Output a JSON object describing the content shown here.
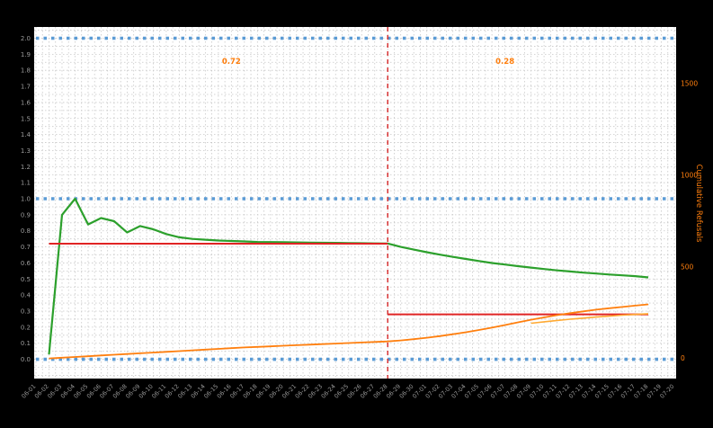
{
  "figure": {
    "background": "#000000"
  },
  "chart_data": {
    "type": "line",
    "title": "",
    "ylabel_right": "Cumulative Refusals",
    "ylim_left": [
      -0.12,
      2.07
    ],
    "ylim_right": [
      -110,
      1810
    ],
    "yticks_left": [
      "0.0",
      "0.1",
      "0.2",
      "0.3",
      "0.4",
      "0.5",
      "0.6",
      "0.7",
      "0.8",
      "0.9",
      "1.0",
      "1.1",
      "1.2",
      "1.3",
      "1.4",
      "1.5",
      "1.6",
      "1.7",
      "1.8",
      "1.9",
      "2.0"
    ],
    "yticks_right": [
      0,
      500,
      1000,
      1500
    ],
    "grid": "on",
    "legend": "none",
    "colors": {
      "figure_bg": "#000000",
      "plot_bg": "#ffffff",
      "grid": "#c8c8c8",
      "left_tick": "#9b9b9b",
      "x_tick": "#9b9b9b",
      "right_tick": "#ff7f0e",
      "reference_blue": "#5b9bd5",
      "rate_green": "#2ca02c",
      "mean_red": "#e02424",
      "cumulative_orange": "#ff7f0e",
      "event_red": "#d62728"
    },
    "x_labels": [
      "06-01",
      "06-02",
      "06-03",
      "06-04",
      "06-05",
      "06-06",
      "06-07",
      "06-08",
      "06-09",
      "06-10",
      "06-11",
      "06-12",
      "06-13",
      "06-14",
      "06-15",
      "06-16",
      "06-17",
      "06-18",
      "06-19",
      "06-20",
      "06-21",
      "06-22",
      "06-23",
      "06-24",
      "06-25",
      "06-26",
      "06-27",
      "06-28",
      "06-29",
      "06-30",
      "07-01",
      "07-02",
      "07-03",
      "07-04",
      "07-05",
      "07-06",
      "07-07",
      "07-08",
      "07-09",
      "07-10",
      "07-11",
      "07-12",
      "07-13",
      "07-14",
      "07-15",
      "07-16",
      "07-17",
      "07-18",
      "07-19",
      "07-20"
    ],
    "event_line": {
      "x_label": "06-28",
      "x_index": 27,
      "color": "#d62728",
      "style": "dashed"
    },
    "annotations": [
      {
        "text": "0.72",
        "x_index": 15,
        "y": 1.85,
        "color": "#ff7f0e"
      },
      {
        "text": "0.28",
        "x_index": 36,
        "y": 1.85,
        "color": "#ff7f0e"
      }
    ],
    "series": [
      {
        "name": "upper-reference",
        "axis": "left",
        "color": "#5b9bd5",
        "style": "dotted",
        "width": 3.6,
        "const": 2.0
      },
      {
        "name": "mid-reference",
        "axis": "left",
        "color": "#5b9bd5",
        "style": "dotted",
        "width": 3.6,
        "const": 1.0
      },
      {
        "name": "lower-reference",
        "axis": "left",
        "color": "#5b9bd5",
        "style": "dotted",
        "width": 3.6,
        "const": 0.0
      },
      {
        "name": "refusal-rate-rolling",
        "axis": "left",
        "color": "#2ca02c",
        "style": "solid",
        "width": 2.2,
        "values": [
          null,
          0.03,
          0.9,
          1.0,
          0.84,
          0.88,
          0.86,
          0.79,
          0.83,
          0.81,
          0.78,
          0.76,
          0.75,
          0.745,
          0.74,
          0.737,
          0.734,
          0.731,
          0.73,
          0.729,
          0.728,
          0.727,
          0.726,
          0.725,
          0.724,
          0.723,
          0.722,
          0.721,
          0.7,
          0.683,
          0.667,
          0.652,
          0.638,
          0.625,
          0.612,
          0.6,
          0.59,
          0.58,
          0.571,
          0.562,
          0.554,
          0.547,
          0.54,
          0.534,
          0.528,
          0.523,
          0.518,
          0.51,
          null,
          null
        ]
      },
      {
        "name": "mean-rate-before",
        "axis": "left",
        "color": "#e02424",
        "style": "solid",
        "width": 2,
        "values": [
          null,
          0.72,
          0.72,
          0.72,
          0.72,
          0.72,
          0.72,
          0.72,
          0.72,
          0.72,
          0.72,
          0.72,
          0.72,
          0.72,
          0.72,
          0.72,
          0.72,
          0.72,
          0.72,
          0.72,
          0.72,
          0.72,
          0.72,
          0.72,
          0.72,
          0.72,
          0.72,
          0.72,
          null,
          null,
          null,
          null,
          null,
          null,
          null,
          null,
          null,
          null,
          null,
          null,
          null,
          null,
          null,
          null,
          null,
          null,
          null,
          null,
          null,
          null
        ]
      },
      {
        "name": "mean-rate-after",
        "axis": "left",
        "color": "#e02424",
        "style": "solid",
        "width": 2,
        "values": [
          null,
          null,
          null,
          null,
          null,
          null,
          null,
          null,
          null,
          null,
          null,
          null,
          null,
          null,
          null,
          null,
          null,
          null,
          null,
          null,
          null,
          null,
          null,
          null,
          null,
          null,
          null,
          0.28,
          0.28,
          0.28,
          0.28,
          0.28,
          0.28,
          0.28,
          0.28,
          0.28,
          0.28,
          0.28,
          0.28,
          0.28,
          0.28,
          0.28,
          0.28,
          0.28,
          0.28,
          0.28,
          0.28,
          0.28,
          null,
          null
        ]
      },
      {
        "name": "cumulative-refusals",
        "axis": "right",
        "color": "#ff7f0e",
        "style": "solid",
        "width": 1.8,
        "values": [
          null,
          0,
          4,
          8,
          12,
          16,
          20,
          24,
          28,
          32,
          36,
          40,
          44,
          48,
          52,
          56,
          60,
          63,
          66,
          69,
          72,
          75,
          78,
          81,
          84,
          87,
          90,
          93,
          98,
          105,
          113,
          122,
          132,
          143,
          155,
          168,
          182,
          197,
          211,
          224,
          236,
          247,
          257,
          266,
          274,
          281,
          288,
          295,
          null,
          null
        ]
      },
      {
        "name": "cumulative-refusals-secondary",
        "axis": "right",
        "color": "#ffaa33",
        "style": "solid",
        "width": 1.6,
        "values": [
          null,
          null,
          null,
          null,
          null,
          null,
          null,
          null,
          null,
          null,
          null,
          null,
          null,
          null,
          null,
          null,
          null,
          null,
          null,
          null,
          null,
          null,
          null,
          null,
          null,
          null,
          null,
          null,
          null,
          null,
          null,
          null,
          null,
          null,
          null,
          null,
          null,
          null,
          192,
          200,
          207,
          214,
          220,
          226,
          231,
          236,
          240,
          244,
          null,
          null
        ]
      }
    ]
  }
}
